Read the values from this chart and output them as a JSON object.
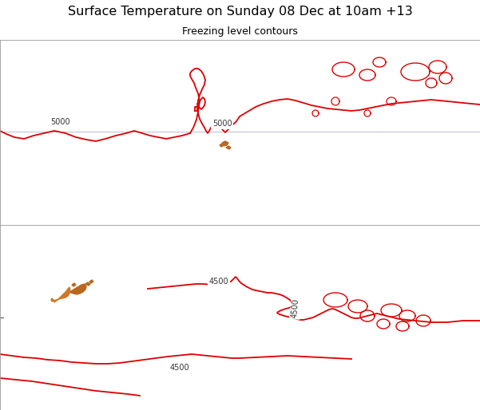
{
  "title": "Surface Temperature on Sunday 08 Dec at 10am +13",
  "subtitle": "Freezing level contours",
  "title_fontsize": 11.5,
  "subtitle_fontsize": 9,
  "bg_color": "#cfd3e8",
  "border_color": "#999999",
  "contour_color": "#dd0000",
  "label_color": "#333333",
  "label_fontsize": 7,
  "island_color_dark": "#b86820",
  "island_color_bright": "#d07828",
  "title_bg": "#ffffff",
  "panel_bg": "#cdd1e6",
  "divider_color": "#aaaacc"
}
